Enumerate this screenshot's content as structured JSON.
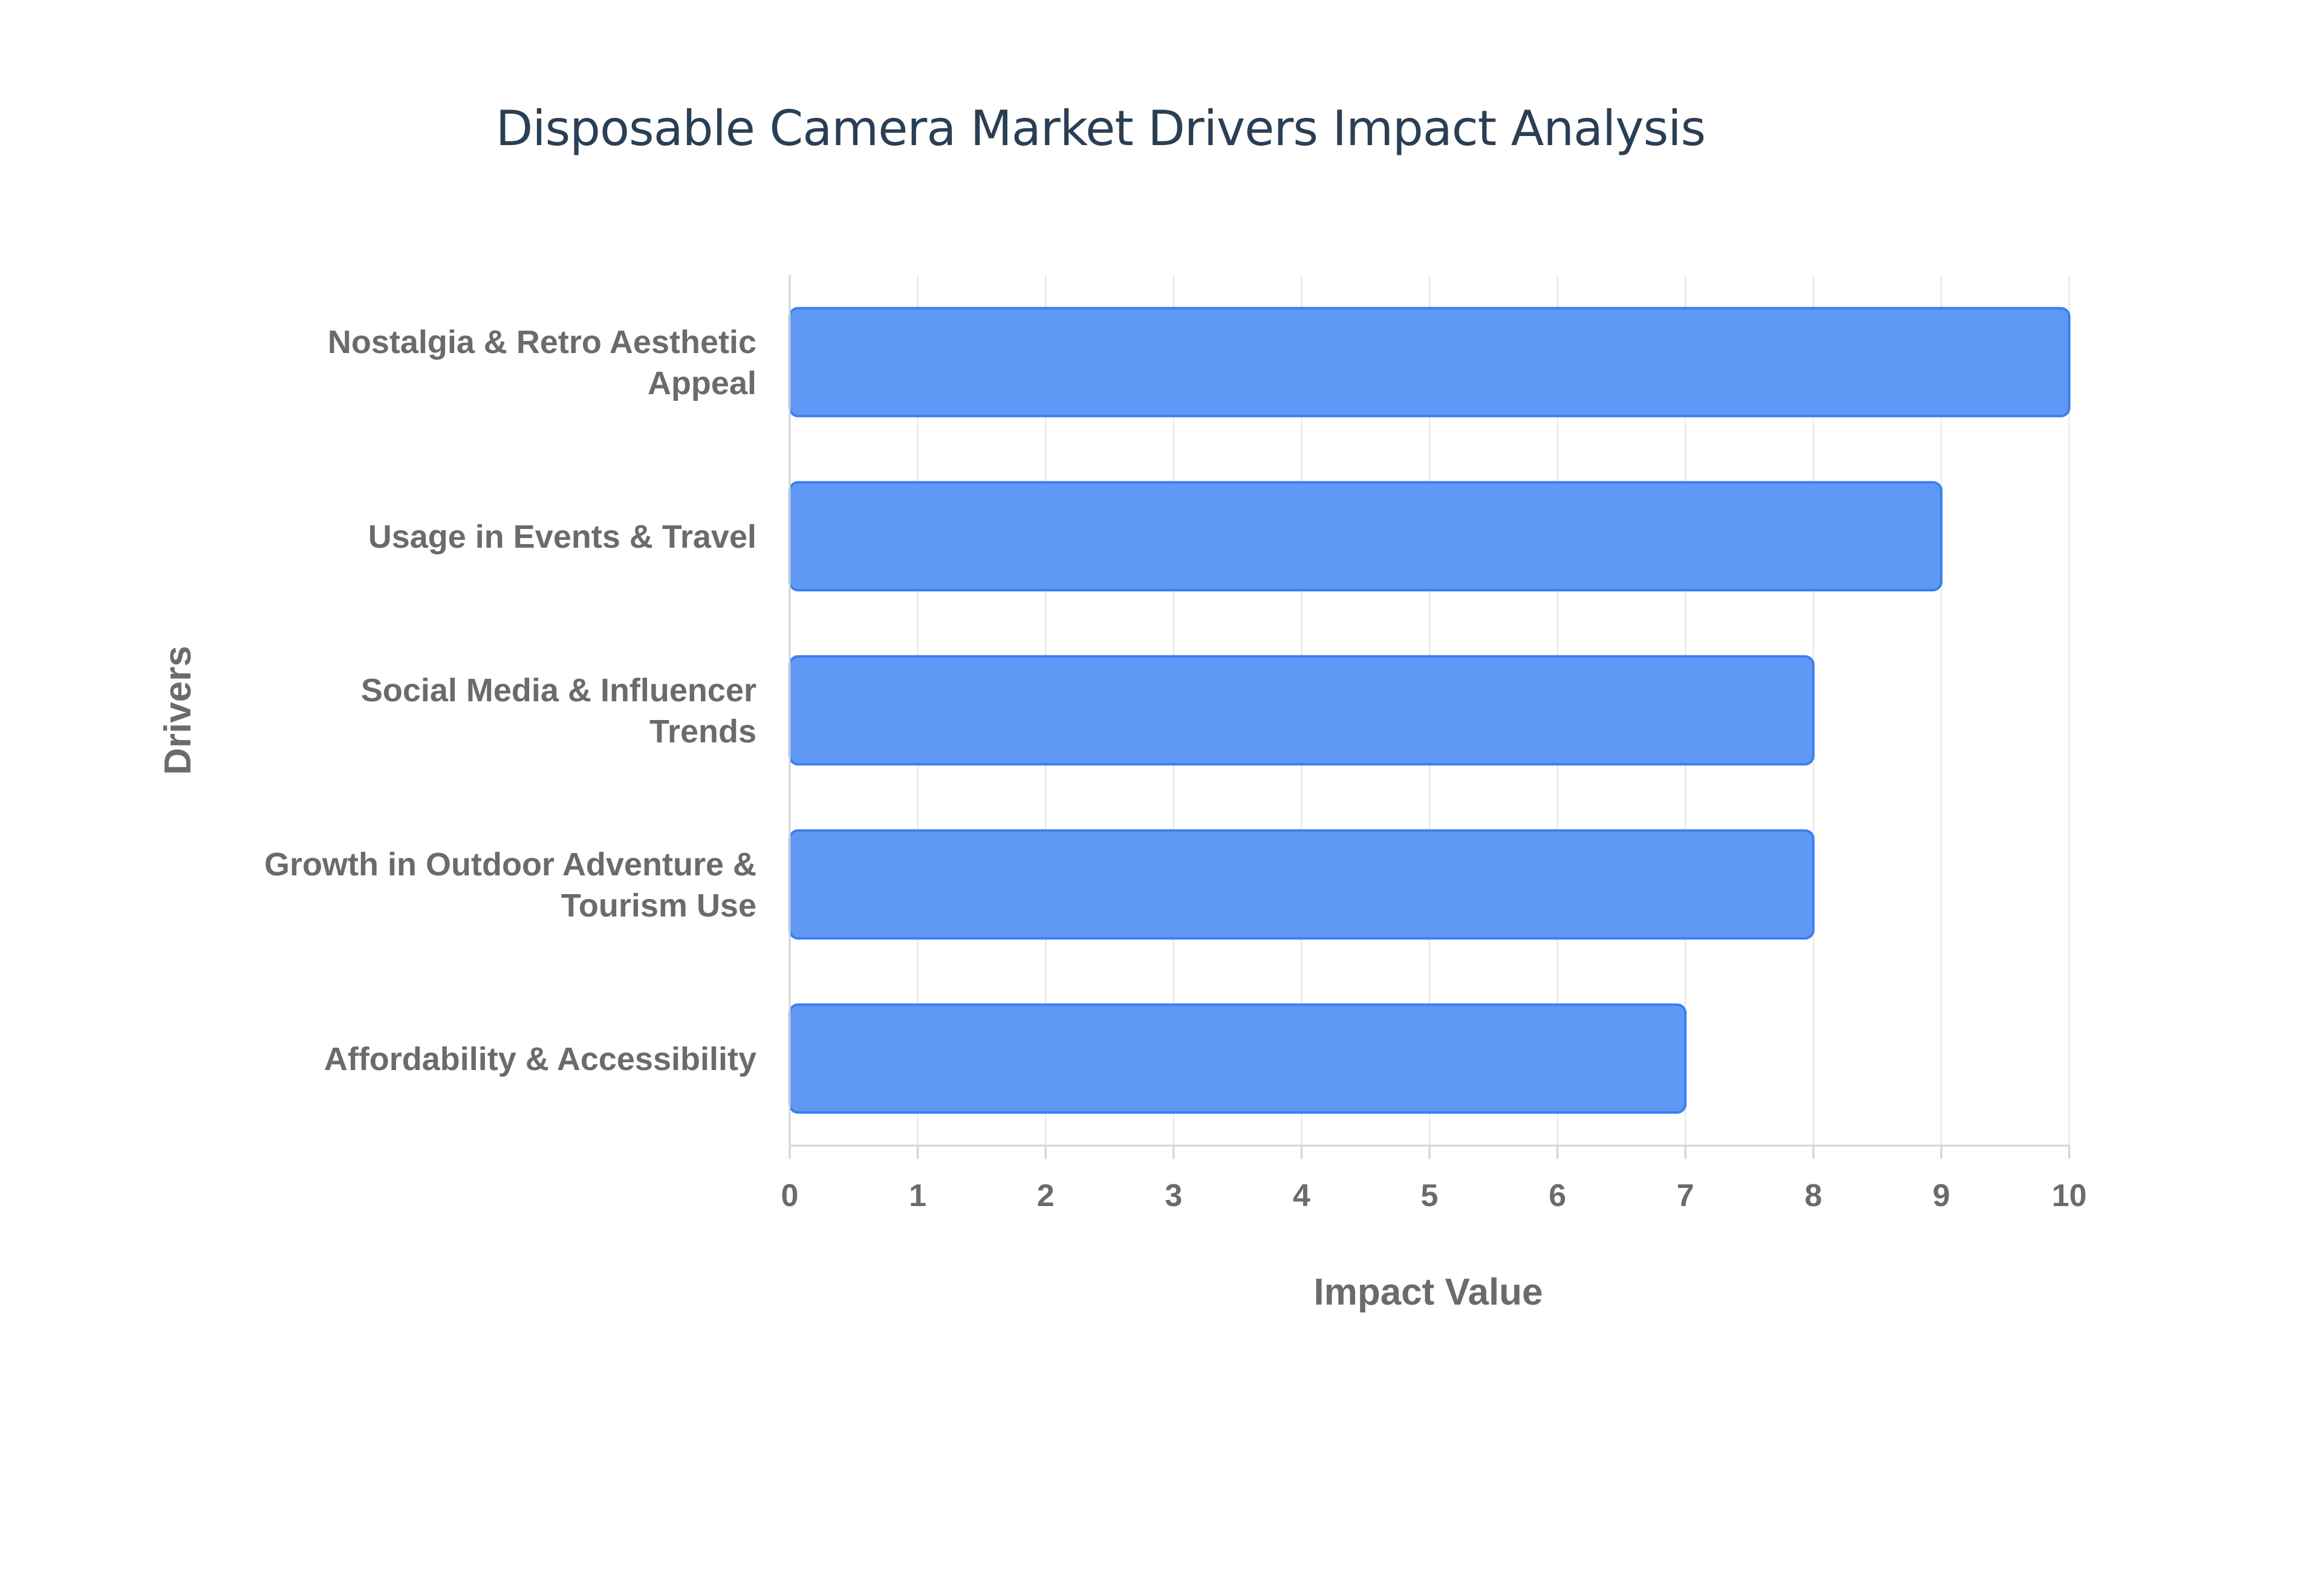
{
  "chart_data": {
    "type": "bar",
    "orientation": "horizontal",
    "title": "Disposable Camera Market Drivers Impact Analysis",
    "xlabel": "Impact Value",
    "ylabel": "Drivers",
    "xlim": [
      0,
      10
    ],
    "xticks": [
      "0",
      "1",
      "2",
      "3",
      "4",
      "5",
      "6",
      "7",
      "8",
      "9",
      "10"
    ],
    "grid": true,
    "legend": "none",
    "bar_color": "#6099f5",
    "bar_edge_color": "#3a7ff0",
    "categories": [
      [
        "Nostalgia & Retro Aesthetic",
        "Appeal"
      ],
      [
        "Usage in Events & Travel"
      ],
      [
        "Social Media & Influencer",
        "Trends"
      ],
      [
        "Growth in Outdoor Adventure &",
        "Tourism Use"
      ],
      [
        "Affordability & Accessibility"
      ]
    ],
    "values": [
      10,
      9,
      8,
      8,
      7
    ]
  }
}
